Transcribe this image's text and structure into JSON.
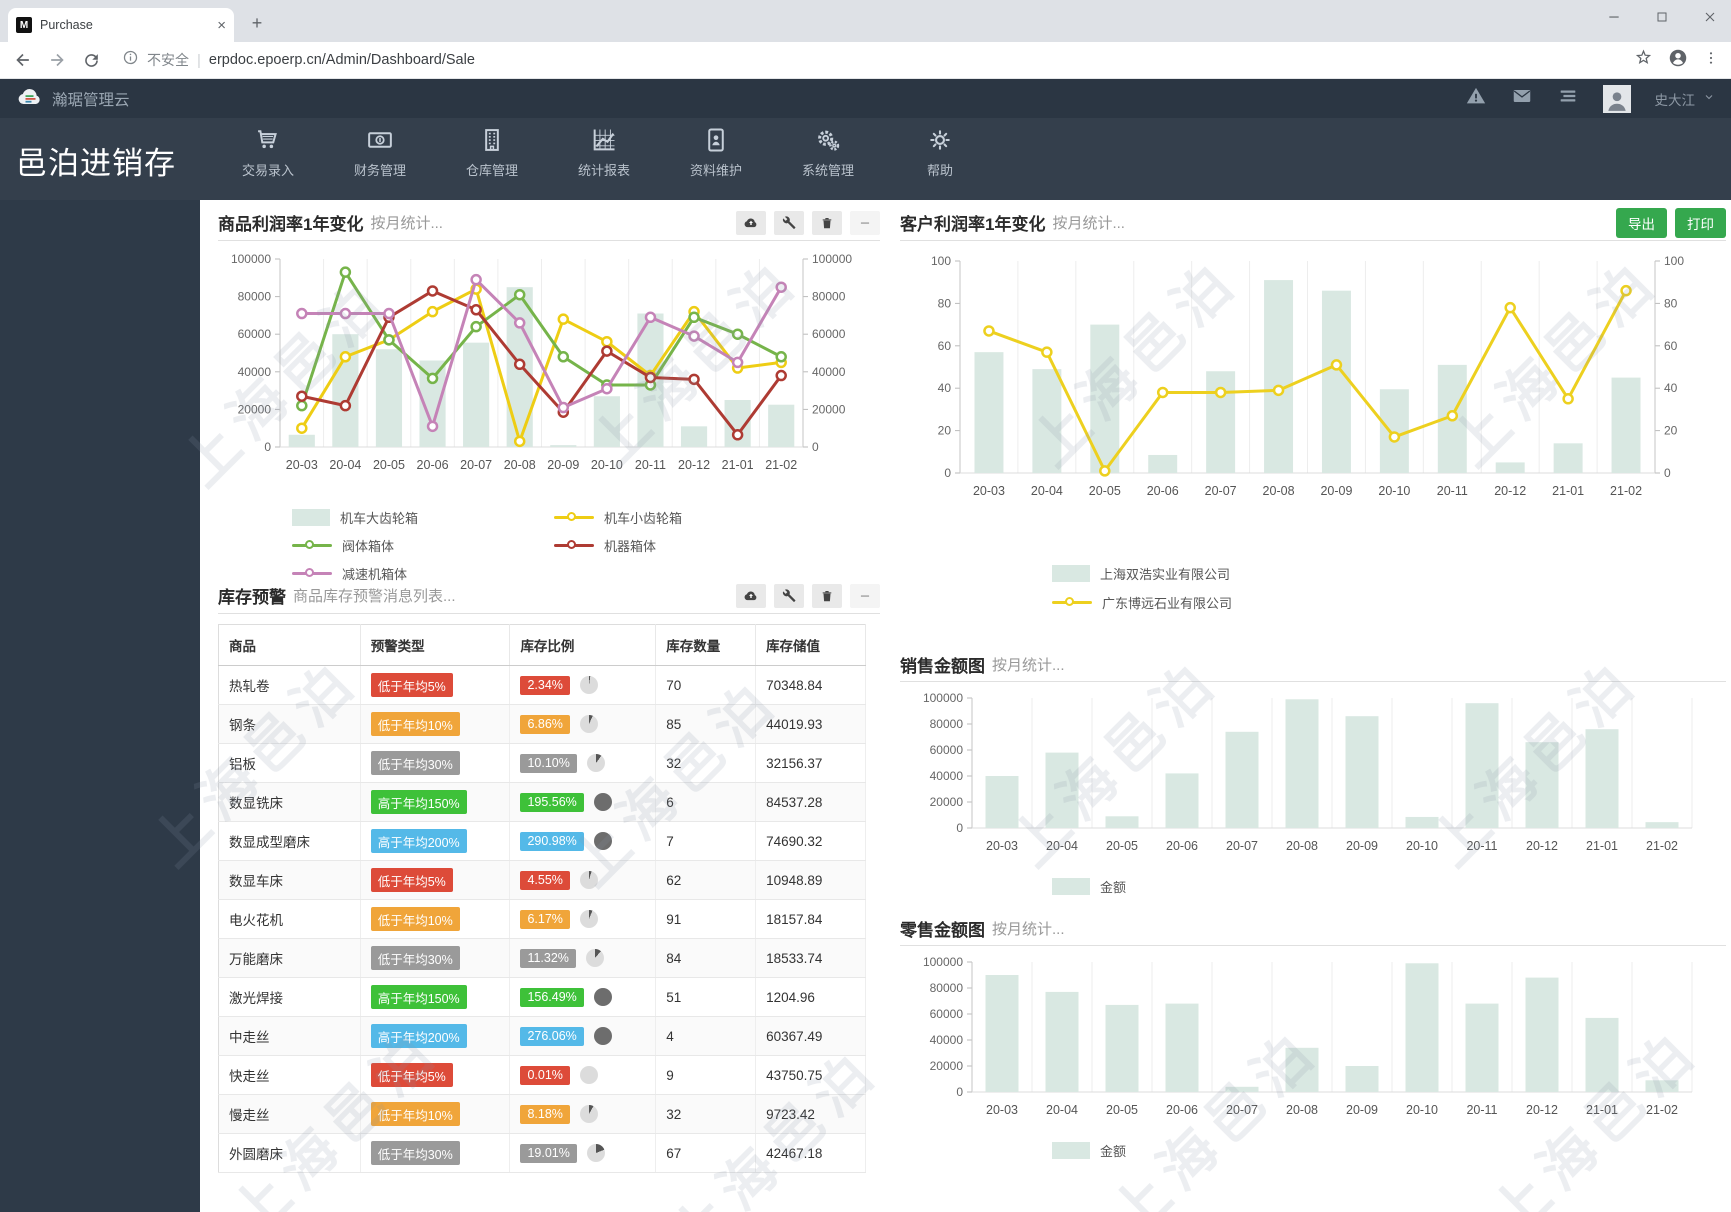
{
  "browser": {
    "tab_title": "Purchase",
    "favicon_letter": "M",
    "security_label": "不安全",
    "url": "erpdoc.epoerp.cn/Admin/Dashboard/Sale"
  },
  "app_header": {
    "brand": "瀚琚管理云",
    "user_name": "史大江"
  },
  "sidebar": {
    "title": "邑泊进销存"
  },
  "menu": {
    "items": [
      {
        "name": "transaction-entry",
        "label": "交易录入",
        "icon": "cart-icon"
      },
      {
        "name": "finance-management",
        "label": "财务管理",
        "icon": "money-icon"
      },
      {
        "name": "warehouse-management",
        "label": "仓库管理",
        "icon": "building-icon"
      },
      {
        "name": "statistics-reports",
        "label": "统计报表",
        "icon": "report-icon"
      },
      {
        "name": "data-maintenance",
        "label": "资料维护",
        "icon": "card-icon"
      },
      {
        "name": "system-management",
        "label": "系统管理",
        "icon": "gears-icon"
      },
      {
        "name": "help",
        "label": "帮助",
        "icon": "sun-icon"
      }
    ]
  },
  "watermark": "上海邑泊",
  "panels": {
    "product_profit": {
      "title": "商品利润率1年变化",
      "subtitle": "按月统计..."
    },
    "customer_profit": {
      "title": "客户利润率1年变化",
      "subtitle": "按月统计...",
      "export_label": "导出",
      "print_label": "打印"
    },
    "inventory_alert": {
      "title": "库存预警",
      "subtitle": "商品库存预警消息列表...",
      "columns": [
        "商品",
        "预警类型",
        "库存比例",
        "库存数量",
        "库存储值"
      ],
      "badge_colors": {
        "red": "#dd4b39",
        "orange": "#f0a53a",
        "gray": "#9a9a9a",
        "green": "#3ec139",
        "blue": "#54b9e8"
      },
      "rows": [
        {
          "product": "热轧卷",
          "alert_type": "低于年均5%",
          "alert_color": "red",
          "ratio": "2.34%",
          "ratio_pct": 2.34,
          "qty": "70",
          "value": "70348.84"
        },
        {
          "product": "钢条",
          "alert_type": "低于年均10%",
          "alert_color": "orange",
          "ratio": "6.86%",
          "ratio_pct": 6.86,
          "qty": "85",
          "value": "44019.93"
        },
        {
          "product": "铝板",
          "alert_type": "低于年均30%",
          "alert_color": "gray",
          "ratio": "10.10%",
          "ratio_pct": 10.1,
          "qty": "32",
          "value": "32156.37"
        },
        {
          "product": "数显铣床",
          "alert_type": "高于年均150%",
          "alert_color": "green",
          "ratio": "195.56%",
          "ratio_pct": 195.56,
          "qty": "6",
          "value": "84537.28"
        },
        {
          "product": "数显成型磨床",
          "alert_type": "高于年均200%",
          "alert_color": "blue",
          "ratio": "290.98%",
          "ratio_pct": 290.98,
          "qty": "7",
          "value": "74690.32"
        },
        {
          "product": "数显车床",
          "alert_type": "低于年均5%",
          "alert_color": "red",
          "ratio": "4.55%",
          "ratio_pct": 4.55,
          "qty": "62",
          "value": "10948.89"
        },
        {
          "product": "电火花机",
          "alert_type": "低于年均10%",
          "alert_color": "orange",
          "ratio": "6.17%",
          "ratio_pct": 6.17,
          "qty": "91",
          "value": "18157.84"
        },
        {
          "product": "万能磨床",
          "alert_type": "低于年均30%",
          "alert_color": "gray",
          "ratio": "11.32%",
          "ratio_pct": 11.32,
          "qty": "84",
          "value": "18533.74"
        },
        {
          "product": "激光焊接",
          "alert_type": "高于年均150%",
          "alert_color": "green",
          "ratio": "156.49%",
          "ratio_pct": 156.49,
          "qty": "51",
          "value": "1204.96"
        },
        {
          "product": "中走丝",
          "alert_type": "高于年均200%",
          "alert_color": "blue",
          "ratio": "276.06%",
          "ratio_pct": 276.06,
          "qty": "4",
          "value": "60367.49"
        },
        {
          "product": "快走丝",
          "alert_type": "低于年均5%",
          "alert_color": "red",
          "ratio": "0.01%",
          "ratio_pct": 0.01,
          "qty": "9",
          "value": "43750.75"
        },
        {
          "product": "慢走丝",
          "alert_type": "低于年均10%",
          "alert_color": "orange",
          "ratio": "8.18%",
          "ratio_pct": 8.18,
          "qty": "32",
          "value": "9723.42"
        },
        {
          "product": "外圆磨床",
          "alert_type": "低于年均30%",
          "alert_color": "gray",
          "ratio": "19.01%",
          "ratio_pct": 19.01,
          "qty": "67",
          "value": "42467.18"
        }
      ]
    },
    "sales_amount": {
      "title": "销售金额图",
      "subtitle": "按月统计..."
    },
    "retail_amount": {
      "title": "零售金额图",
      "subtitle": "按月统计..."
    }
  },
  "chart_data": [
    {
      "id": "product_profit_chart",
      "type": "bar+line",
      "title": "商品利润率1年变化 按月统计",
      "categories": [
        "20-03",
        "20-04",
        "20-05",
        "20-06",
        "20-07",
        "20-08",
        "20-09",
        "20-10",
        "20-11",
        "20-12",
        "21-01",
        "21-02"
      ],
      "ylim": [
        0,
        100000
      ],
      "ytick_step": 20000,
      "dual_axis": true,
      "grid": "vertical",
      "legend_position": "bottom",
      "bar_series": [
        {
          "name": "机车大齿轮箱",
          "color": "#d9e8e2",
          "values": [
            6500,
            60000,
            52000,
            46000,
            55500,
            85000,
            1000,
            27000,
            71000,
            11000,
            25000,
            22500
          ]
        }
      ],
      "line_series": [
        {
          "name": "机车小齿轮箱",
          "color": "#eecd14",
          "values": [
            10000,
            48000,
            57000,
            72000,
            84000,
            3000,
            68000,
            56000,
            38000,
            72000,
            42000,
            45000
          ]
        },
        {
          "name": "阀体箱体",
          "color": "#76b44a",
          "values": [
            22000,
            93000,
            57000,
            36500,
            64000,
            81000,
            48000,
            33000,
            33000,
            69000,
            60000,
            48000
          ]
        },
        {
          "name": "机器箱体",
          "color": "#ae3b33",
          "values": [
            27000,
            22000,
            69000,
            83000,
            73000,
            44000,
            18500,
            51000,
            37000,
            36000,
            6500,
            38000
          ]
        },
        {
          "name": "减速机箱体",
          "color": "#c583b7",
          "values": [
            71000,
            71000,
            71000,
            11000,
            89000,
            66000,
            21000,
            31000,
            69000,
            59000,
            45000,
            85000
          ]
        }
      ]
    },
    {
      "id": "customer_profit_chart",
      "type": "bar+line",
      "title": "客户利润率1年变化 按月统计",
      "categories": [
        "20-03",
        "20-04",
        "20-05",
        "20-06",
        "20-07",
        "20-08",
        "20-09",
        "20-10",
        "20-11",
        "20-12",
        "21-01",
        "21-02"
      ],
      "ylim": [
        0,
        100
      ],
      "ytick_step": 20,
      "dual_axis": true,
      "grid": "vertical",
      "legend_position": "bottom",
      "bar_series": [
        {
          "name": "上海双浩实业有限公司",
          "color": "#d9e8e2",
          "values": [
            57,
            49,
            70,
            8.5,
            48,
            91,
            86,
            39.5,
            51,
            5,
            14,
            45
          ]
        }
      ],
      "line_series": [
        {
          "name": "广东博远石业有限公司",
          "color": "#edd01f",
          "values": [
            67,
            57,
            1,
            38,
            38,
            39,
            51,
            17,
            27,
            78,
            35,
            86
          ]
        }
      ]
    },
    {
      "id": "sales_amount_chart",
      "type": "bar",
      "title": "销售金额图 按月统计",
      "categories": [
        "20-03",
        "20-04",
        "20-05",
        "20-06",
        "20-07",
        "20-08",
        "20-09",
        "20-10",
        "20-11",
        "20-12",
        "21-01",
        "21-02"
      ],
      "ylim": [
        0,
        100000
      ],
      "ytick_step": 20000,
      "dual_axis": false,
      "grid": "vertical",
      "legend_position": "bottom",
      "bar_series": [
        {
          "name": "金额",
          "color": "#d9e8e2",
          "values": [
            40000,
            58000,
            9000,
            42000,
            74000,
            99000,
            86000,
            8500,
            96000,
            66000,
            76000,
            4500
          ]
        }
      ],
      "line_series": []
    },
    {
      "id": "retail_amount_chart",
      "type": "bar",
      "title": "零售金额图 按月统计",
      "categories": [
        "20-03",
        "20-04",
        "20-05",
        "20-06",
        "20-07",
        "20-08",
        "20-09",
        "20-10",
        "20-11",
        "20-12",
        "21-01",
        "21-02"
      ],
      "ylim": [
        0,
        100000
      ],
      "ytick_step": 20000,
      "dual_axis": false,
      "grid": "vertical",
      "legend_position": "bottom",
      "bar_series": [
        {
          "name": "金额",
          "color": "#d9e8e2",
          "values": [
            90000,
            77000,
            67000,
            68000,
            4000,
            34000,
            20000,
            99000,
            68000,
            88000,
            57000,
            9000
          ]
        }
      ],
      "line_series": []
    }
  ]
}
